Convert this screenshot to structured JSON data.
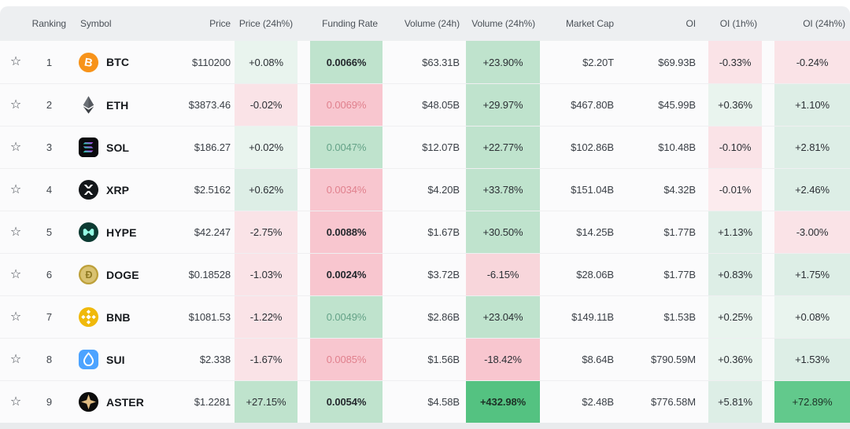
{
  "header": {
    "columns": [
      "Ranking",
      "Symbol",
      "Price",
      "Price (24h%)",
      "Funding Rate",
      "Volume (24h)",
      "Volume (24h%)",
      "Market Cap",
      "OI",
      "OI (1h%)",
      "OI (24h%)"
    ]
  },
  "icons": {
    "favorite": "☆"
  },
  "colors": {
    "header_bg": "#edeff1",
    "row_bg": "#fbfbfc",
    "positive_bg_faint": "#e9f4ee",
    "positive_bg_light": "#ddeee6",
    "positive_bg_medium": "#bfe3cd",
    "positive_bg_strong": "#54c281",
    "positive_bg_strong_alt": "#62c98c",
    "negative_bg_faint": "#fcebee",
    "negative_bg_light": "#fae3e7",
    "negative_bg_medium": "#f8c6cf",
    "negative_bg_soft": "#f8d6db",
    "funding_red_text": "#e0808d",
    "funding_green_text": "#64a287",
    "btc_brand": "#f7931a",
    "bnb_brand": "#f0b90b",
    "sui_brand": "#4ca3ff",
    "hype_brand": "#0d3b33"
  },
  "rows": [
    {
      "rank": "1",
      "symbol": "BTC",
      "icon": "btc",
      "price": "$110200",
      "price_24h": {
        "text": "+0.08%",
        "tone": "g0"
      },
      "funding_rate": {
        "text": "0.0066%",
        "tone": "g2",
        "text_tone": "dark"
      },
      "volume_24h": "$63.31B",
      "volume_24h_pct": {
        "text": "+23.90%",
        "tone": "g2"
      },
      "market_cap": "$2.20T",
      "oi": "$69.93B",
      "oi_1h": {
        "text": "-0.33%",
        "tone": "r1"
      },
      "oi_24h": {
        "text": "-0.24%",
        "tone": "r1"
      }
    },
    {
      "rank": "2",
      "symbol": "ETH",
      "icon": "eth",
      "price": "$3873.46",
      "price_24h": {
        "text": "-0.02%",
        "tone": "r1"
      },
      "funding_rate": {
        "text": "0.0069%",
        "tone": "r2",
        "text_tone": "red"
      },
      "volume_24h": "$48.05B",
      "volume_24h_pct": {
        "text": "+29.97%",
        "tone": "g2"
      },
      "market_cap": "$467.80B",
      "oi": "$45.99B",
      "oi_1h": {
        "text": "+0.36%",
        "tone": "g0"
      },
      "oi_24h": {
        "text": "+1.10%",
        "tone": "g1"
      }
    },
    {
      "rank": "3",
      "symbol": "SOL",
      "icon": "sol",
      "price": "$186.27",
      "price_24h": {
        "text": "+0.02%",
        "tone": "g0"
      },
      "funding_rate": {
        "text": "0.0047%",
        "tone": "g2",
        "text_tone": "green"
      },
      "volume_24h": "$12.07B",
      "volume_24h_pct": {
        "text": "+22.77%",
        "tone": "g2"
      },
      "market_cap": "$102.86B",
      "oi": "$10.48B",
      "oi_1h": {
        "text": "-0.10%",
        "tone": "r1"
      },
      "oi_24h": {
        "text": "+2.81%",
        "tone": "g1"
      }
    },
    {
      "rank": "4",
      "symbol": "XRP",
      "icon": "xrp",
      "price": "$2.5162",
      "price_24h": {
        "text": "+0.62%",
        "tone": "g1"
      },
      "funding_rate": {
        "text": "0.0034%",
        "tone": "r2",
        "text_tone": "red"
      },
      "volume_24h": "$4.20B",
      "volume_24h_pct": {
        "text": "+33.78%",
        "tone": "g2"
      },
      "market_cap": "$151.04B",
      "oi": "$4.32B",
      "oi_1h": {
        "text": "-0.01%",
        "tone": "r0"
      },
      "oi_24h": {
        "text": "+2.46%",
        "tone": "g1"
      }
    },
    {
      "rank": "5",
      "symbol": "HYPE",
      "icon": "hype",
      "price": "$42.247",
      "price_24h": {
        "text": "-2.75%",
        "tone": "r1"
      },
      "funding_rate": {
        "text": "0.0088%",
        "tone": "r2",
        "text_tone": "dark"
      },
      "volume_24h": "$1.67B",
      "volume_24h_pct": {
        "text": "+30.50%",
        "tone": "g2"
      },
      "market_cap": "$14.25B",
      "oi": "$1.77B",
      "oi_1h": {
        "text": "+1.13%",
        "tone": "g1"
      },
      "oi_24h": {
        "text": "-3.00%",
        "tone": "r1"
      }
    },
    {
      "rank": "6",
      "symbol": "DOGE",
      "icon": "doge",
      "price": "$0.18528",
      "price_24h": {
        "text": "-1.03%",
        "tone": "r1"
      },
      "funding_rate": {
        "text": "0.0024%",
        "tone": "r2",
        "text_tone": "dark"
      },
      "volume_24h": "$3.72B",
      "volume_24h_pct": {
        "text": "-6.15%",
        "tone": "r3"
      },
      "market_cap": "$28.06B",
      "oi": "$1.77B",
      "oi_1h": {
        "text": "+0.83%",
        "tone": "g1"
      },
      "oi_24h": {
        "text": "+1.75%",
        "tone": "g1"
      }
    },
    {
      "rank": "7",
      "symbol": "BNB",
      "icon": "bnb",
      "price": "$1081.53",
      "price_24h": {
        "text": "-1.22%",
        "tone": "r1"
      },
      "funding_rate": {
        "text": "0.0049%",
        "tone": "g2",
        "text_tone": "green"
      },
      "volume_24h": "$2.86B",
      "volume_24h_pct": {
        "text": "+23.04%",
        "tone": "g2"
      },
      "market_cap": "$149.11B",
      "oi": "$1.53B",
      "oi_1h": {
        "text": "+0.25%",
        "tone": "g0"
      },
      "oi_24h": {
        "text": "+0.08%",
        "tone": "g0"
      }
    },
    {
      "rank": "8",
      "symbol": "SUI",
      "icon": "sui",
      "price": "$2.338",
      "price_24h": {
        "text": "-1.67%",
        "tone": "r1"
      },
      "funding_rate": {
        "text": "0.0085%",
        "tone": "r2",
        "text_tone": "red"
      },
      "volume_24h": "$1.56B",
      "volume_24h_pct": {
        "text": "-18.42%",
        "tone": "r2"
      },
      "market_cap": "$8.64B",
      "oi": "$790.59M",
      "oi_1h": {
        "text": "+0.36%",
        "tone": "g0"
      },
      "oi_24h": {
        "text": "+1.53%",
        "tone": "g1"
      }
    },
    {
      "rank": "9",
      "symbol": "ASTER",
      "icon": "aster",
      "price": "$1.2281",
      "price_24h": {
        "text": "+27.15%",
        "tone": "g2"
      },
      "funding_rate": {
        "text": "0.0054%",
        "tone": "g2",
        "text_tone": "dark"
      },
      "volume_24h": "$4.58B",
      "volume_24h_pct": {
        "text": "+432.98%",
        "tone": "g3"
      },
      "market_cap": "$2.48B",
      "oi": "$776.58M",
      "oi_1h": {
        "text": "+5.81%",
        "tone": "g1"
      },
      "oi_24h": {
        "text": "+72.89%",
        "tone": "g3b"
      }
    }
  ]
}
